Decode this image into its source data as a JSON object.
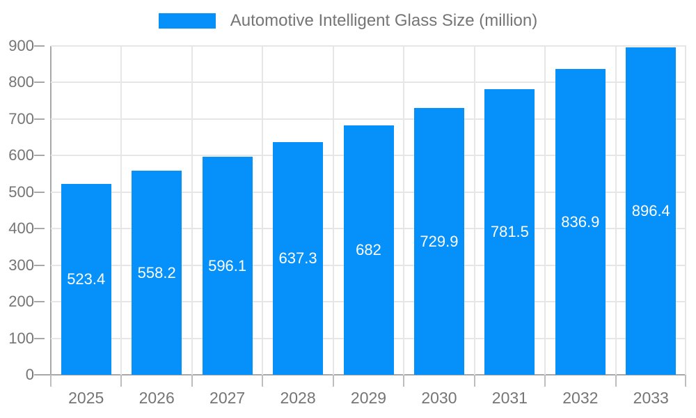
{
  "chart_data": {
    "type": "bar",
    "title": "",
    "categories": [
      "2025",
      "2026",
      "2027",
      "2028",
      "2029",
      "2030",
      "2031",
      "2032",
      "2033"
    ],
    "series": [
      {
        "name": "Automotive Intelligent Glass Size (million)",
        "values": [
          523.4,
          558.2,
          596.1,
          637.3,
          682,
          729.9,
          781.5,
          836.9,
          896.4
        ]
      }
    ],
    "value_labels": [
      "523.4",
      "558.2",
      "596.1",
      "637.3",
      "682",
      "729.9",
      "781.5",
      "836.9",
      "896.4"
    ],
    "xlabel": "",
    "ylabel": "",
    "ylim": [
      0,
      900
    ],
    "yticks": [
      0,
      100,
      200,
      300,
      400,
      500,
      600,
      700,
      800,
      900
    ],
    "grid": true,
    "legend_position": "top-center",
    "colors": {
      "bar": "#0590fa",
      "grid": "#e6e6e6",
      "axis": "#a8a8a8",
      "tick": "#bdbdbd",
      "tick_label": "#757575",
      "value_label": "#ffffff",
      "background": "#ffffff"
    }
  }
}
